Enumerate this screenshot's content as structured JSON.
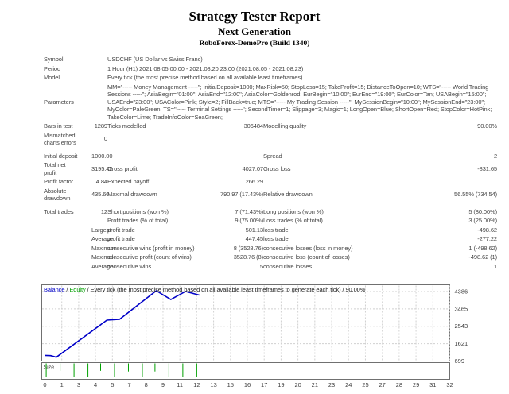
{
  "report": {
    "title": "Strategy Tester Report",
    "ea_name": "Next Generation",
    "server": "RoboForex-DemoPro (Build 1340)",
    "rows": [
      {
        "type": "wide",
        "label": "Symbol",
        "value": "USDCHF (US Dollar vs Swiss Franc)"
      },
      {
        "type": "wide",
        "label": "Period",
        "value": "1 Hour (H1) 2021.08.05 00:00 - 2021.08.20 23:00 (2021.08.05 - 2021.08.23)"
      },
      {
        "type": "wide",
        "label": "Model",
        "value": "Every tick (the most precise method based on all available least timeframes)"
      },
      {
        "type": "params",
        "label": "Parameters",
        "value": "MM=\"----- Money Management -----\"; InitialDeposit=1000; MaxRisk=50; StopLoss=15; TakeProfit=15; DistanceToOpen=10; WTS=\"----- World Trading Sessions -----\"; AsiaBegin=\"01:00\"; AsiaEnd=\"12:00\"; AsiaColor=Goldenrod; EurBegin=\"10:00\"; EurEnd=\"19:00\"; EurColor=Tan; USABegin=\"15:00\"; USAEnd=\"23:00\"; USAColor=Pink; Style=2; FillBack=true; MTS=\"----- My Trading Session -----\"; MySessionBegin=\"10:00\"; MySessionEnd=\"23:00\"; MyColor=PaleGreen; TS=\"----- Terminal Settings -----\"; SecondTimer=1; Slippage=3; Magic=1; LongOpen=Blue; ShortOpen=Red; StopColor=HotPink; TakeColor=Lime; TradeInfoColor=SeaGreen;"
      },
      {
        "type": "six",
        "cells": [
          "Bars in test",
          "1289",
          "Ticks modelled",
          "306484",
          "Modelling quality",
          "90.00%"
        ]
      },
      {
        "type": "six",
        "cells": [
          "Mismatched\ncharts errors",
          "0",
          "",
          "",
          "",
          ""
        ]
      },
      {
        "type": "gap"
      },
      {
        "type": "six",
        "cells": [
          "Initial deposit",
          "1000.00",
          "",
          "",
          "Spread",
          "2"
        ]
      },
      {
        "type": "six",
        "cells": [
          "Total net\nprofit",
          "3195.42",
          "Gross profit",
          "4027.07",
          "Gross loss",
          "-831.65"
        ]
      },
      {
        "type": "six",
        "cells": [
          "Profit factor",
          "4.84",
          "Expected payoff",
          "266.29",
          "",
          ""
        ]
      },
      {
        "type": "six",
        "cells": [
          "Absolute\ndrawdown",
          "435.60",
          "Maximal drawdown",
          "790.97 (17.43%)",
          "Relative drawdown",
          "56.55% (734.54)"
        ]
      },
      {
        "type": "gap"
      },
      {
        "type": "six",
        "cells": [
          "Total trades",
          "12",
          "Short positions (won %)",
          "7 (71.43%)",
          "Long positions (won %)",
          "5 (80.00%)"
        ]
      },
      {
        "type": "six",
        "cells": [
          "",
          "",
          "Profit trades (% of total)",
          "9 (75.00%)",
          "Loss trades (% of total)",
          "3 (25.00%)"
        ]
      },
      {
        "type": "six",
        "cells": [
          "",
          "Largest",
          "profit trade",
          "501.13",
          "loss trade",
          "-498.62"
        ]
      },
      {
        "type": "six",
        "cells": [
          "",
          "Average",
          "profit trade",
          "447.45",
          "loss trade",
          "-277.22"
        ]
      },
      {
        "type": "six",
        "cells": [
          "",
          "Maximum",
          "consecutive wins (profit in money)",
          "8 (3528.76)",
          "consecutive losses (loss in money)",
          "1 (-498.62)"
        ]
      },
      {
        "type": "six",
        "cells": [
          "",
          "Maximal",
          "consecutive profit (count of wins)",
          "3528.76 (8)",
          "consecutive loss (count of losses)",
          "-498.62 (1)"
        ]
      },
      {
        "type": "six",
        "cells": [
          "",
          "Average",
          "consecutive wins",
          "5",
          "consecutive losses",
          "1"
        ]
      }
    ]
  },
  "chart_data": {
    "type": "line",
    "legend": {
      "balance": "Balance",
      "equity": "Equity",
      "model": "Every tick (the most precise method based on all available least timeframes to generate each tick)",
      "quality": "90.00%",
      "sep": " / "
    },
    "colors": {
      "balance_line": "#0000C8",
      "equity_label": "#00A000",
      "size_bars": "#00A000",
      "grid": "#d0d0d0",
      "border": "#707070",
      "axis_text": "#3c3c3c"
    },
    "y_ticks": [
      4386,
      3465,
      2543,
      1621,
      699
    ],
    "x_tick_labels": [
      0,
      1,
      3,
      4,
      5,
      7,
      8,
      9,
      11,
      12,
      13,
      15,
      16,
      17,
      19,
      20,
      21,
      23,
      24,
      25,
      27,
      28,
      29,
      31,
      32
    ],
    "x_range": [
      0,
      32
    ],
    "series": [
      {
        "name": "Balance",
        "points": [
          [
            0,
            1000
          ],
          [
            0.45,
            985
          ],
          [
            0.9,
            900
          ],
          [
            4.9,
            2870
          ],
          [
            5.9,
            2910
          ],
          [
            8.8,
            4430
          ],
          [
            9.95,
            3960
          ],
          [
            11.1,
            4390
          ],
          [
            12.2,
            4195
          ]
        ]
      }
    ],
    "size_lane": {
      "label": "Size",
      "bars": [
        {
          "x": 0.1,
          "h": 1
        },
        {
          "x": 1.2,
          "h": 0.55
        },
        {
          "x": 2.3,
          "h": 1
        },
        {
          "x": 3.4,
          "h": 1
        },
        {
          "x": 4.4,
          "h": 0.55
        },
        {
          "x": 5.5,
          "h": 1
        },
        {
          "x": 6.6,
          "h": 0.6
        },
        {
          "x": 7.7,
          "h": 1
        },
        {
          "x": 8.7,
          "h": 0.6
        },
        {
          "x": 9.8,
          "h": 1
        },
        {
          "x": 10.9,
          "h": 1
        },
        {
          "x": 12.0,
          "h": 1
        }
      ]
    }
  }
}
